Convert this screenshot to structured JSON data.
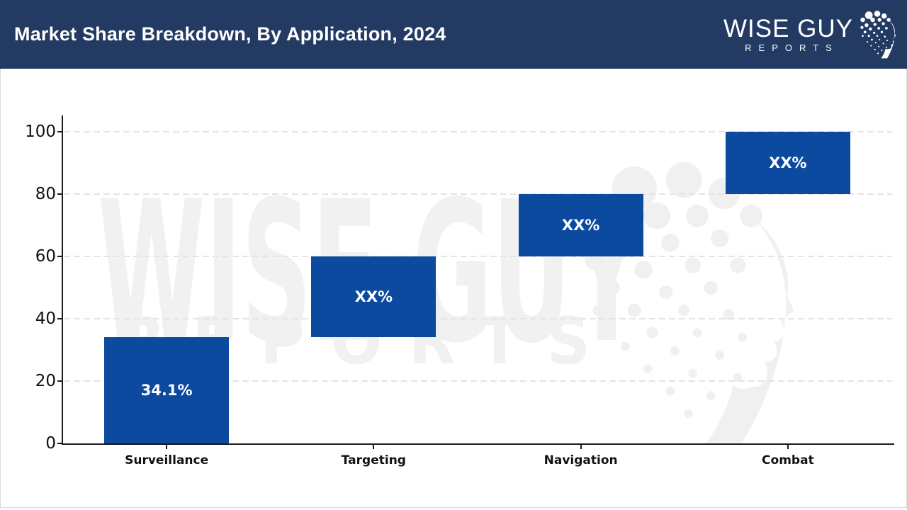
{
  "header": {
    "title": "Market Share Breakdown, By Application, 2024",
    "bg_color": "#233a63",
    "logo": {
      "line1": "WISE GUY",
      "line2": "REPORTS"
    }
  },
  "watermark": {
    "line1": "WISE GUY",
    "line2": "REPORTS"
  },
  "chart_data": {
    "type": "bar",
    "subtype": "waterfall",
    "title": "Market Share Breakdown, By Application, 2024",
    "xlabel": "",
    "ylabel": "",
    "categories": [
      "Surveillance",
      "Targeting",
      "Navigation",
      "Combat"
    ],
    "series": [
      {
        "name": "Market Share (%)",
        "segments": [
          {
            "category": "Surveillance",
            "start": 0,
            "end": 34.1,
            "label": "34.1%"
          },
          {
            "category": "Targeting",
            "start": 34.1,
            "end": 60,
            "label": "XX%"
          },
          {
            "category": "Navigation",
            "start": 60,
            "end": 80,
            "label": "XX%"
          },
          {
            "category": "Combat",
            "start": 80,
            "end": 100,
            "label": "XX%"
          }
        ]
      }
    ],
    "y_ticks": [
      0,
      20,
      40,
      60,
      80,
      100
    ],
    "ylim": [
      0,
      105
    ],
    "grid": "horizontal-dashed",
    "legend": "none",
    "bar_color": "#0b4a9e",
    "grid_color": "#e4e4e4",
    "axis_color": "#1a1a1a",
    "label_color": "#111111",
    "bar_label_color": "#ffffff"
  }
}
